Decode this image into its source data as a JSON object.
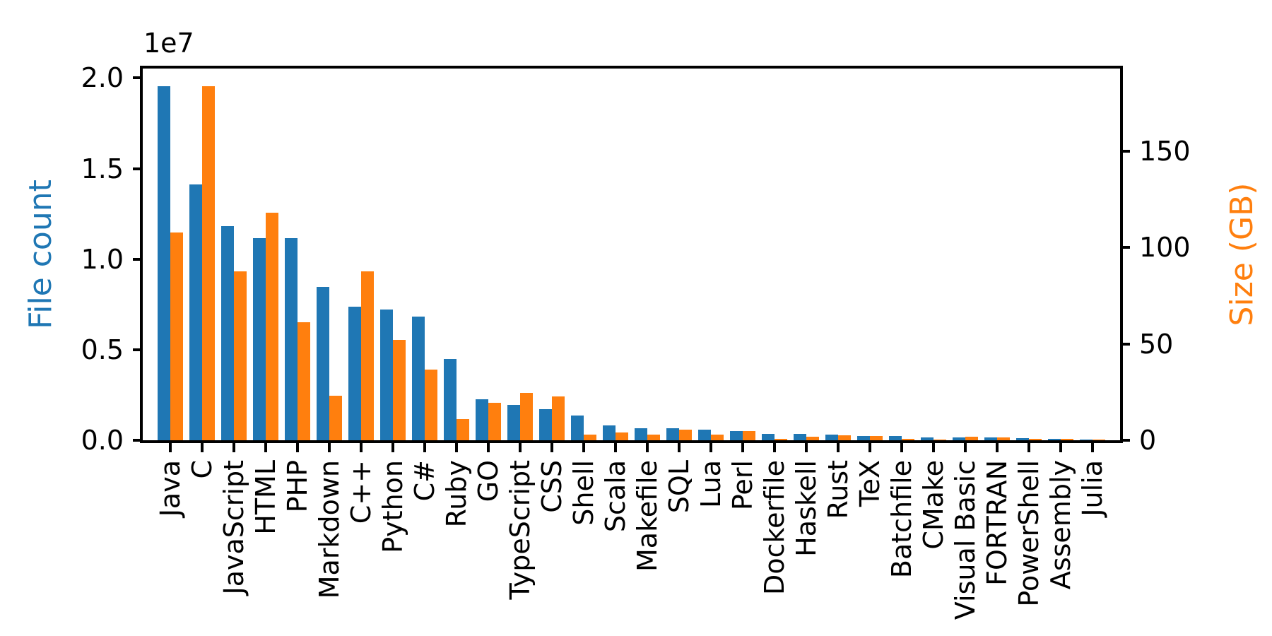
{
  "chart_data": {
    "type": "bar",
    "title": "",
    "grid": false,
    "legend": null,
    "categories": [
      "Java",
      "C",
      "JavaScript",
      "HTML",
      "PHP",
      "Markdown",
      "C++",
      "Python",
      "C#",
      "Ruby",
      "GO",
      "TypeScript",
      "CSS",
      "Shell",
      "Scala",
      "Makefile",
      "SQL",
      "Lua",
      "Perl",
      "Dockerfile",
      "Haskell",
      "Rust",
      "TeX",
      "Batchfile",
      "CMake",
      "Visual Basic",
      "FORTRAN",
      "PowerShell",
      "Assembly",
      "Julia"
    ],
    "series": [
      {
        "name": "File count",
        "axis": "left",
        "color": "#1f77b4",
        "values": [
          19548190,
          14143113,
          11839883,
          11178557,
          11177610,
          8464626,
          7380520,
          7226626,
          6811652,
          4473331,
          2265436,
          1940406,
          1734406,
          1385648,
          835755,
          679430,
          656671,
          578554,
          497949,
          366505,
          340623,
          322431,
          251015,
          236945,
          175282,
          155652,
          142038,
          136846,
          82905,
          58317
        ]
      },
      {
        "name": "Size (GB)",
        "axis": "right",
        "color": "#ff7f0e",
        "values": [
          107.7,
          183.83,
          87.82,
          118.12,
          61.41,
          23.09,
          87.73,
          52.03,
          36.83,
          10.95,
          19.28,
          24.59,
          22.67,
          3.01,
          3.87,
          2.92,
          5.67,
          2.81,
          4.7,
          0.71,
          1.85,
          2.68,
          2.15,
          0.7,
          0.54,
          1.91,
          1.62,
          0.69,
          0.78,
          0.29
        ]
      }
    ],
    "left_axis": {
      "label": "File count",
      "color": "#1f77b4",
      "offset_text": "1e7",
      "ticks": [
        "0.0",
        "0.5",
        "1.0",
        "1.5",
        "2.0"
      ],
      "tick_values": [
        0,
        5000000,
        10000000,
        15000000,
        20000000
      ],
      "ylim": [
        0,
        20525000
      ]
    },
    "right_axis": {
      "label": "Size (GB)",
      "color": "#ff7f0e",
      "ticks": [
        "0",
        "50",
        "100",
        "150"
      ],
      "tick_values": [
        0,
        50,
        100,
        150
      ],
      "ylim": [
        0,
        193.0
      ]
    }
  }
}
